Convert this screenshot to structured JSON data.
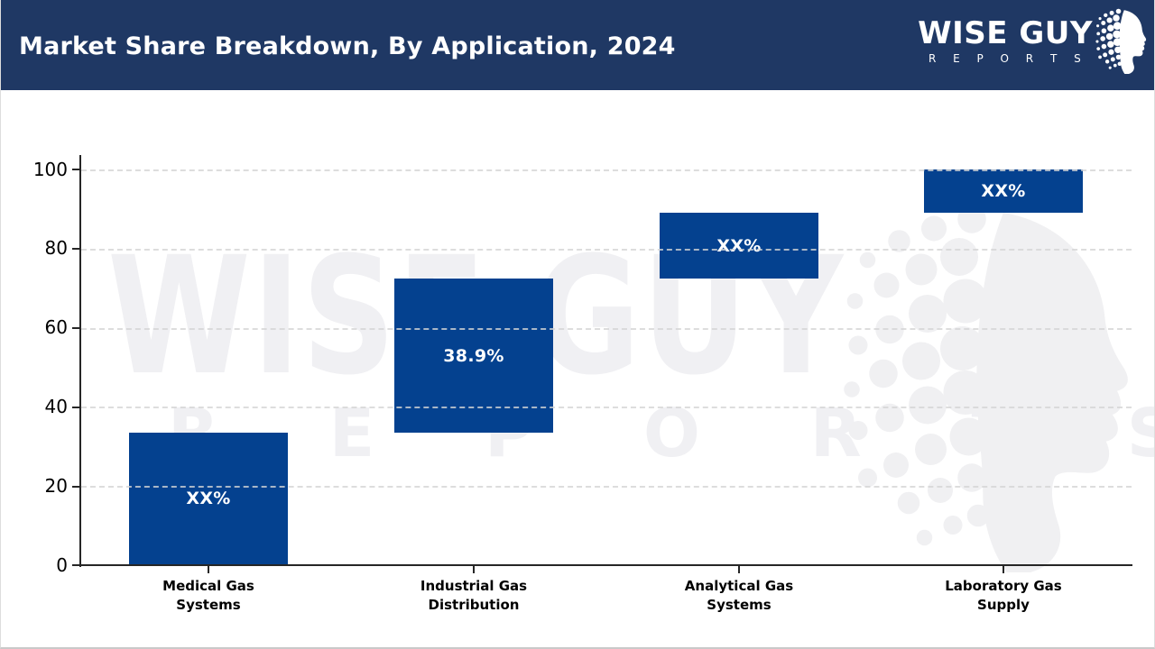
{
  "header": {
    "title": "Market Share Breakdown, By Application, 2024",
    "bg_color": "#1f3864",
    "logo": {
      "wordmark": "WISE GUY",
      "subtitle": "R E P O R T S"
    }
  },
  "watermark": {
    "wordmark": "WISE GUY",
    "subtitle": "R E P O R T S"
  },
  "chart_data": {
    "type": "bar",
    "variant": "floating-waterfall",
    "title": "Market Share Breakdown, By Application, 2024",
    "categories": [
      "Medical Gas Systems",
      "Industrial Gas Distribution",
      "Analytical Gas Systems",
      "Laboratory Gas Supply"
    ],
    "x_labels_lines": [
      [
        "Medical Gas",
        "Systems"
      ],
      [
        "Industrial Gas",
        "Distribution"
      ],
      [
        "Analytical Gas",
        "Systems"
      ],
      [
        "Laboratory Gas",
        "Supply"
      ]
    ],
    "segments": [
      {
        "category": "Medical Gas Systems",
        "start": 0,
        "end": 33.5,
        "value": 33.5,
        "value_label": "XX%"
      },
      {
        "category": "Industrial Gas Distribution",
        "start": 33.5,
        "end": 72.4,
        "value": 38.9,
        "value_label": "38.9%"
      },
      {
        "category": "Analytical Gas Systems",
        "start": 72.4,
        "end": 89.1,
        "value": 16.7,
        "value_label": "XX%"
      },
      {
        "category": "Laboratory Gas Supply",
        "start": 89.1,
        "end": 100,
        "value": 10.9,
        "value_label": "XX%"
      }
    ],
    "yticks": [
      0,
      20,
      40,
      60,
      80,
      100
    ],
    "ylim": [
      0,
      100
    ],
    "xlabel": "",
    "ylabel": "",
    "grid": "horizontal dashed",
    "legend": "none",
    "bar_color": "#04418f",
    "bar_label_color": "#ffffff"
  }
}
